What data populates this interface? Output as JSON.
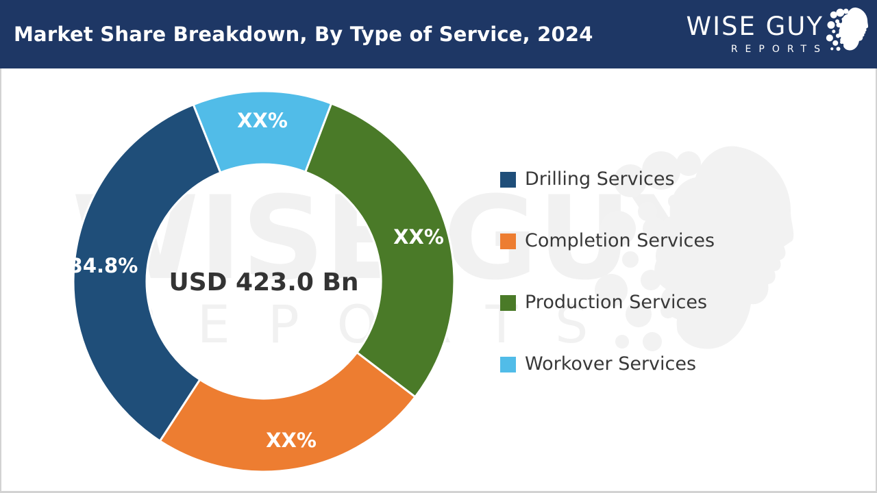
{
  "header": {
    "title": "Market Share Breakdown, By Type of Service, 2024",
    "logo": {
      "line1": "WISE GUY",
      "line2": "REPORTS"
    }
  },
  "watermark": {
    "line1": "WISE GUY",
    "line2": "REPORTS"
  },
  "chart_data": {
    "type": "pie",
    "title": "Market Share Breakdown, By Type of Service, 2024",
    "donut": true,
    "center_label": "USD 423.0 Bn",
    "inner_radius_ratio": 0.615,
    "start_angle_deg": -21.7,
    "direction": "counterclockwise",
    "legend_position": "right",
    "segments": [
      {
        "label": "Drilling Services",
        "value_pct": 34.8,
        "display_label": "34.8%",
        "color": "#1F4E79"
      },
      {
        "label": "Completion Services",
        "value_pct": 23.8,
        "display_label": "XX%",
        "color": "#ED7D31"
      },
      {
        "label": "Production Services",
        "value_pct": 29.6,
        "display_label": "XX%",
        "color": "#4A7A28"
      },
      {
        "label": "Workover Services",
        "value_pct": 11.8,
        "display_label": "XX%",
        "color": "#51BCE8"
      }
    ]
  },
  "colors": {
    "header_bg": "#1E3765",
    "center_text": "#333333",
    "legend_text": "#383838",
    "watermark": "#F1F1F1",
    "page_border": "#D2D2D2"
  }
}
